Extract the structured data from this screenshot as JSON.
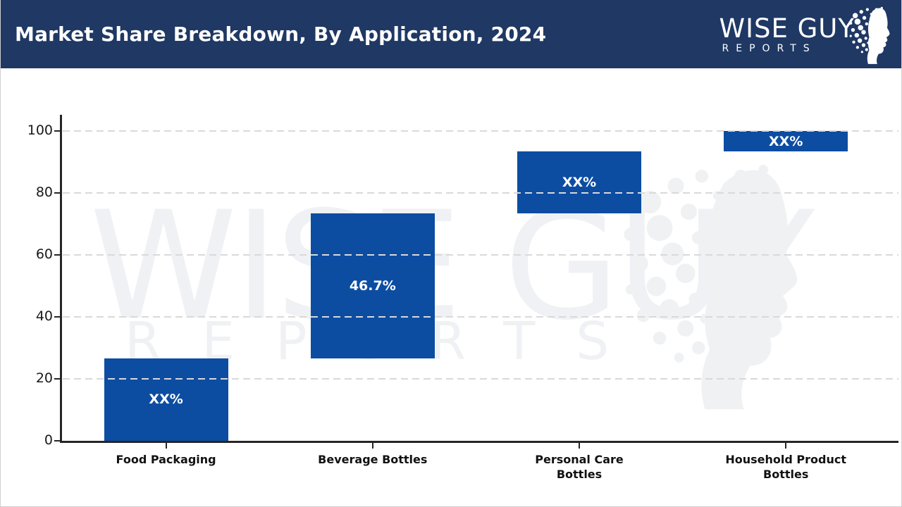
{
  "header": {
    "title": "Market Share Breakdown, By Application, 2024",
    "logo_line1": "WISE GUY",
    "logo_line2": "REPORTS"
  },
  "watermark": {
    "line1": "WISE GUY",
    "line2": "REPORTS"
  },
  "colors": {
    "header_bg": "#1f3864",
    "bar": "#0c4da2",
    "grid": "#d9d9d9",
    "axis": "#262626",
    "tick_text": "#1a1a1a",
    "bar_label_text": "#ffffff",
    "watermark": "#f0f1f4"
  },
  "chart_data": {
    "type": "bar",
    "subtype": "floating-waterfall",
    "title": "Market Share Breakdown, By Application, 2024",
    "categories": [
      {
        "lines": [
          "Food Packaging"
        ]
      },
      {
        "lines": [
          "Beverage Bottles"
        ]
      },
      {
        "lines": [
          "Personal Care",
          "Bottles"
        ]
      },
      {
        "lines": [
          "Household Product",
          "Bottles"
        ]
      }
    ],
    "series": [
      {
        "name": "Market share (%)",
        "segments": [
          {
            "category": "Food Packaging",
            "start": 0,
            "end": 26.7,
            "label": "XX%"
          },
          {
            "category": "Beverage Bottles",
            "start": 26.7,
            "end": 73.4,
            "label": "46.7%"
          },
          {
            "category": "Personal Care Bottles",
            "start": 73.4,
            "end": 93.3,
            "label": "XX%"
          },
          {
            "category": "Household Product Bottles",
            "start": 93.3,
            "end": 100,
            "label": "XX%"
          }
        ]
      }
    ],
    "ylim": [
      0,
      100
    ],
    "yticks": [
      0,
      20,
      40,
      60,
      80,
      100
    ],
    "xlabel": "",
    "ylabel": "",
    "grid": {
      "horizontal": true,
      "style": "dashed"
    },
    "legend": "none"
  }
}
